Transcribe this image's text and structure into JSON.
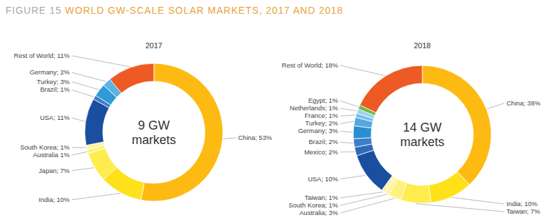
{
  "figure": {
    "label": "FIGURE 15",
    "title": "WORLD GW-SCALE SOLAR MARKETS, 2017 AND 2018"
  },
  "chart_data": [
    {
      "type": "pie",
      "title": "2017",
      "annotations": [
        "9 GW",
        "markets"
      ],
      "categories": [
        "China; 53%",
        "India; 10%",
        "Japan; 7%",
        "Australia 1%",
        "South Korea; 1%",
        "USA; 11%",
        "Brazil; 1%",
        "Turkey; 3%",
        "Germany; 2%",
        "Rest of World; 11%"
      ],
      "values": [
        53,
        10,
        7,
        1,
        1,
        11,
        1,
        3,
        2,
        11
      ],
      "colors": [
        "#FDBA12",
        "#FFE11A",
        "#FFEC4D",
        "#FFF27A",
        "#FFF59D",
        "#1A4FA0",
        "#3F7CC4",
        "#2E9BD6",
        "#5AB4E5",
        "#EE5A24"
      ]
    },
    {
      "type": "pie",
      "title": "2018",
      "annotations": [
        "14 GW",
        "markets"
      ],
      "categories": [
        "China; 38%",
        "India; 10%",
        "Taiwan; 7%",
        "Australia; 3%",
        "South Korea; 1%",
        "Taiwan; 1%",
        "USA; 10%",
        "Mexico; 2%",
        "Brazil; 2%",
        "Germany; 3%",
        "Turkey; 2%",
        "France; 1%",
        "Netherlands; 1%",
        "Egypt; 1%",
        "Rest of World; 18%"
      ],
      "values": [
        38,
        10,
        7,
        3,
        1,
        1,
        10,
        2,
        2,
        3,
        2,
        1,
        1,
        1,
        18
      ],
      "colors": [
        "#FDBA12",
        "#FFE11A",
        "#FFEC4D",
        "#FFF27A",
        "#FFF59D",
        "#FFF3B0",
        "#1A4FA0",
        "#2C6BB8",
        "#3D7FC6",
        "#2A8FD0",
        "#55A8E0",
        "#7CC0EA",
        "#9BD3F0",
        "#6DBE45",
        "#EE5A24"
      ]
    }
  ]
}
